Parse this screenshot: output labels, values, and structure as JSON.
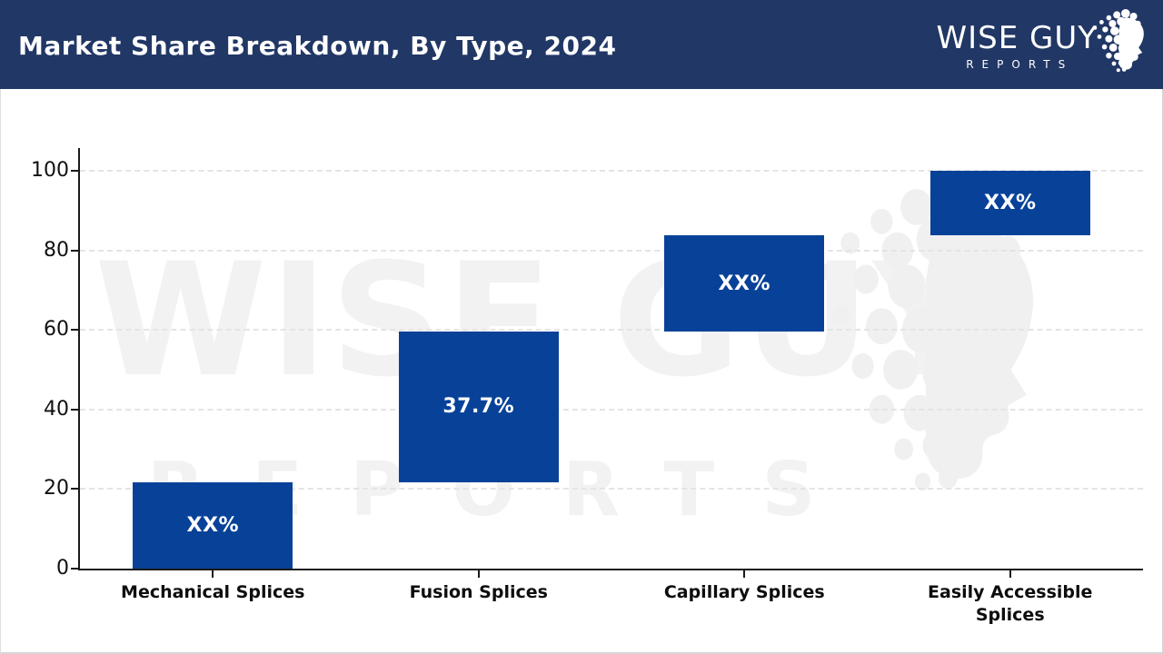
{
  "header": {
    "title": "Market Share Breakdown, By Type, 2024"
  },
  "logo": {
    "wordmark": "WISE GUY",
    "subtext": "REPORTS"
  },
  "watermark": {
    "wordmark": "WISE GUY",
    "subtext": "REPORTS"
  },
  "chart_data": {
    "type": "bar",
    "variant": "waterfall",
    "title": "Market Share Breakdown, By Type, 2024",
    "categories": [
      "Mechanical Splices",
      "Fusion Splices",
      "Capillary Splices",
      "Easily Accessible\nSplices"
    ],
    "segments": [
      {
        "category": "Mechanical Splices",
        "start": 0,
        "end": 21.8,
        "value": 21.8,
        "label": "XX%"
      },
      {
        "category": "Fusion Splices",
        "start": 21.8,
        "end": 59.5,
        "value": 37.7,
        "label": "37.7%"
      },
      {
        "category": "Capillary Splices",
        "start": 59.5,
        "end": 83.7,
        "value": 24.2,
        "label": "XX%"
      },
      {
        "category": "Easily Accessible\nSplices",
        "start": 83.7,
        "end": 100,
        "value": 16.3,
        "label": "XX%"
      }
    ],
    "ylim": [
      0,
      100
    ],
    "yticks": [
      0,
      20,
      40,
      60,
      80,
      100
    ],
    "bar_color": "#084298",
    "grid": "horizontal-dashed",
    "legend": "none"
  }
}
